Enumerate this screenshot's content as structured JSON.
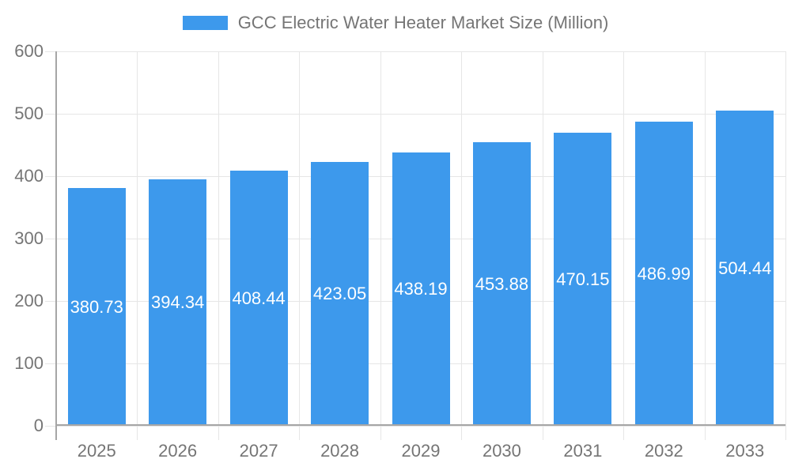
{
  "page": {
    "background_color": "#FFFFFF"
  },
  "legend": {
    "position": "top-center",
    "swatch_shape": "rectangle"
  },
  "chart_data": {
    "type": "bar",
    "title": "GCC Electric Water Heater Market Size (Million)",
    "categories": [
      "2025",
      "2026",
      "2027",
      "2028",
      "2029",
      "2030",
      "2031",
      "2032",
      "2033"
    ],
    "series": [
      {
        "name": "GCC Electric Water Heater Market Size (Million)",
        "values": [
          380.73,
          394.34,
          408.44,
          423.05,
          438.19,
          453.88,
          470.15,
          486.99,
          504.44
        ]
      }
    ],
    "value_label_decimals": 2,
    "value_label_position": "inside-center",
    "xlabel": "",
    "ylabel": "",
    "ylim": [
      0,
      600
    ],
    "yticks": [
      0,
      100,
      200,
      300,
      400,
      500,
      600
    ],
    "grid": true,
    "legend_position": "top",
    "colors": {
      "bar": "#3D99EC",
      "value_label_text": "#FFFFFF",
      "axis_text": "#757575",
      "legend_text": "#757575",
      "gridline": "#E6E6E6",
      "axis_line": "#A6A6A6"
    }
  }
}
